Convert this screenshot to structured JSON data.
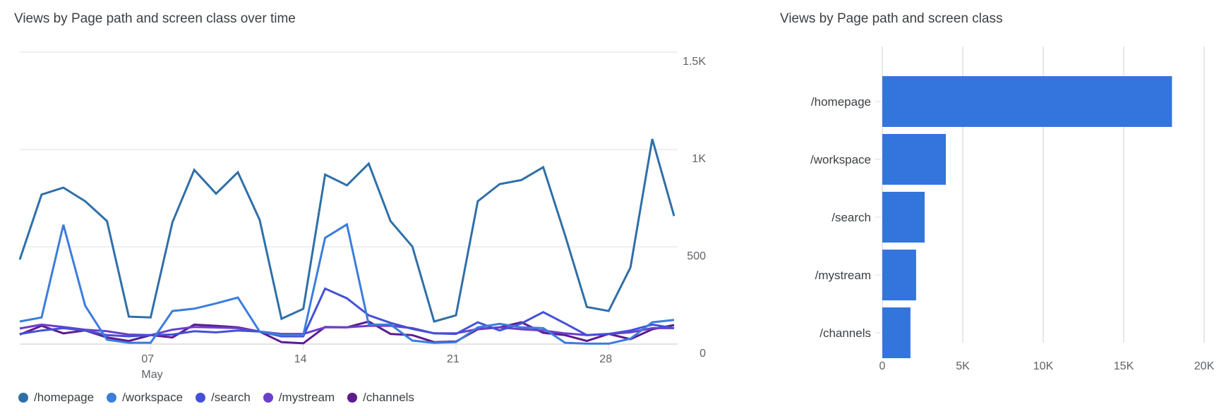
{
  "chart_data": [
    {
      "type": "line",
      "title": "Views by Page path and screen class over time",
      "x_tick_labels": [
        {
          "day": 7,
          "label": "07",
          "sublabel": "May"
        },
        {
          "day": 14,
          "label": "14"
        },
        {
          "day": 21,
          "label": "21"
        },
        {
          "day": 28,
          "label": "28"
        }
      ],
      "x": [
        1,
        2,
        3,
        4,
        5,
        6,
        7,
        8,
        9,
        10,
        11,
        12,
        13,
        14,
        15,
        16,
        17,
        18,
        19,
        20,
        21,
        22,
        23,
        24,
        25,
        26,
        27,
        28,
        29,
        30,
        31
      ],
      "x_month": "May",
      "ylim": [
        0,
        1500
      ],
      "y_ticks": [
        {
          "value": 0,
          "label": "0"
        },
        {
          "value": 500,
          "label": "500"
        },
        {
          "value": 1000,
          "label": "1K"
        },
        {
          "value": 1500,
          "label": "1.5K"
        }
      ],
      "y_axis_side": "right",
      "grid": true,
      "legend_position": "bottom-left",
      "series": [
        {
          "name": "/homepage",
          "color": "#2f6fa8",
          "values": [
            434,
            768,
            804,
            734,
            632,
            141,
            137,
            626,
            895,
            773,
            883,
            638,
            130,
            181,
            871,
            816,
            927,
            632,
            501,
            116,
            148,
            734,
            822,
            843,
            909,
            560,
            191,
            170,
            394,
            1054,
            658
          ]
        },
        {
          "name": "/workspace",
          "color": "#3b7ddd",
          "values": [
            116,
            137,
            613,
            197,
            22,
            7,
            7,
            170,
            182,
            209,
            239,
            64,
            46,
            46,
            546,
            615,
            100,
            100,
            18,
            6,
            10,
            86,
            104,
            86,
            82,
            7,
            2,
            2,
            28,
            112,
            124
          ]
        },
        {
          "name": "/search",
          "color": "#4450d8",
          "values": [
            52,
            70,
            82,
            70,
            46,
            40,
            46,
            49,
            66,
            60,
            70,
            64,
            40,
            40,
            285,
            235,
            148,
            109,
            78,
            55,
            52,
            112,
            70,
            106,
            164,
            106,
            46,
            52,
            70,
            100,
            82
          ]
        },
        {
          "name": "/mystream",
          "color": "#6c3fc9",
          "values": [
            80,
            100,
            88,
            74,
            66,
            49,
            46,
            74,
            88,
            85,
            82,
            64,
            52,
            52,
            86,
            86,
            94,
            94,
            82,
            55,
            55,
            78,
            86,
            76,
            70,
            55,
            46,
            52,
            60,
            82,
            82
          ]
        },
        {
          "name": "/channels",
          "color": "#5e1a8e",
          "values": [
            49,
            94,
            55,
            70,
            34,
            16,
            46,
            34,
            100,
            94,
            86,
            64,
            10,
            4,
            88,
            86,
            116,
            52,
            46,
            10,
            13,
            76,
            86,
            112,
            58,
            46,
            16,
            52,
            25,
            76,
            98
          ]
        }
      ]
    },
    {
      "type": "bar",
      "orientation": "horizontal",
      "title": "Views by Page path and screen class",
      "categories": [
        "/homepage",
        "/workspace",
        "/search",
        "/mystream",
        "/channels"
      ],
      "values": [
        18000,
        3950,
        2630,
        2100,
        1750
      ],
      "color": "#3474dd",
      "xlim": [
        0,
        20000
      ],
      "x_ticks": [
        {
          "value": 0,
          "label": "0"
        },
        {
          "value": 5000,
          "label": "5K"
        },
        {
          "value": 10000,
          "label": "10K"
        },
        {
          "value": 15000,
          "label": "15K"
        },
        {
          "value": 20000,
          "label": "20K"
        }
      ],
      "grid": true
    }
  ]
}
